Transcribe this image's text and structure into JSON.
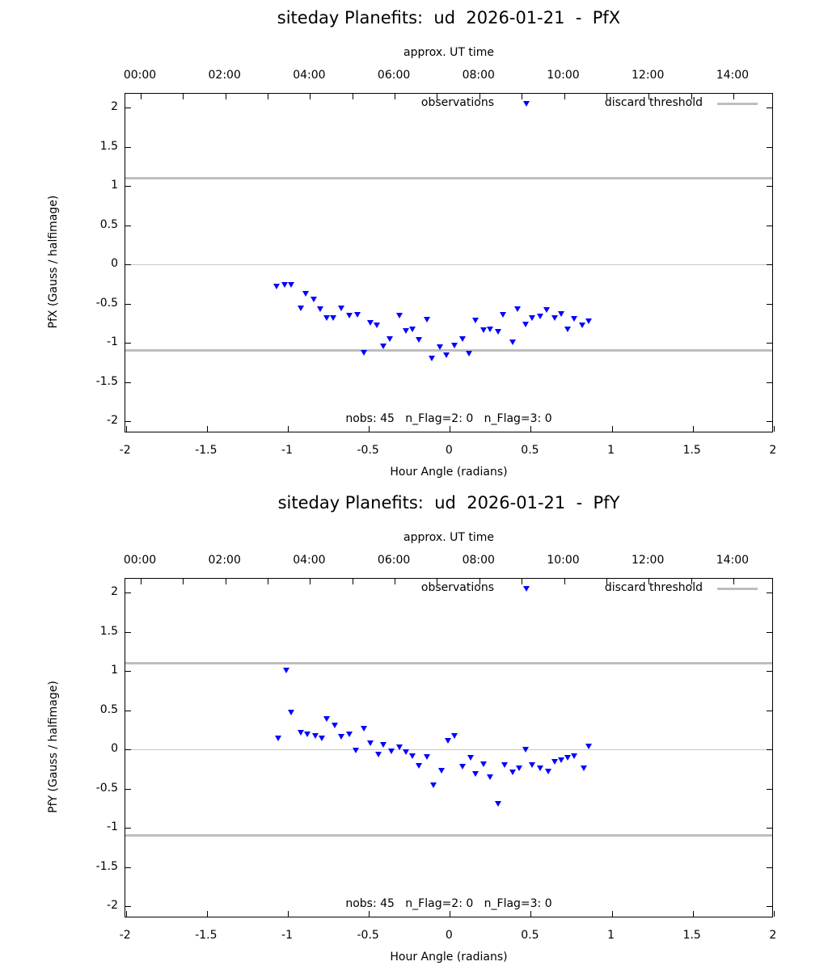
{
  "page": {
    "background": "#ffffff"
  },
  "colors": {
    "observations": "#0000ff",
    "discard_threshold": "#bebebe",
    "zero_line": "#c6c6c6",
    "axis": "#000000",
    "text": "#000000"
  },
  "chart_data": [
    {
      "type": "scatter",
      "title": "siteday Planefits:  ud  2026-01-21  -  PfX",
      "x2label": "approx. UT time",
      "xlabel": "Hour Angle (radians)",
      "ylabel": "PfX (Gauss / halfimage)",
      "xlim": [
        -2,
        2
      ],
      "ylim": [
        -2.2,
        2.2
      ],
      "grid": false,
      "legend_position": "top-right-inside",
      "xticks": [
        -2,
        -1.5,
        -1,
        -0.5,
        0,
        0.5,
        1,
        1.5,
        2
      ],
      "yticks": [
        2,
        1.5,
        1,
        0.5,
        0,
        -0.5,
        -1,
        -1.5,
        -2
      ],
      "x2tick_labels": [
        "00:00",
        "02:00",
        "04:00",
        "06:00",
        "08:00",
        "10:00",
        "12:00",
        "14:00"
      ],
      "x2tick_hour_step_labeled": 2,
      "threshold_lines": [
        1.1,
        -1.1
      ],
      "zero_line": 0,
      "legend": [
        {
          "label": "observations",
          "marker": "triangle-down",
          "color": "#0000ff"
        },
        {
          "label": "discard threshold",
          "style": "line",
          "color": "#bebebe"
        }
      ],
      "annotation": "nobs: 45   n_Flag=2: 0   n_Flag=3: 0",
      "nobs": 45,
      "series": [
        {
          "name": "observations",
          "points": [
            [
              -1.07,
              -0.29
            ],
            [
              -1.02,
              -0.27
            ],
            [
              -0.98,
              -0.27
            ],
            [
              -0.92,
              -0.57
            ],
            [
              -0.89,
              -0.38
            ],
            [
              -0.84,
              -0.45
            ],
            [
              -0.8,
              -0.58
            ],
            [
              -0.76,
              -0.69
            ],
            [
              -0.72,
              -0.69
            ],
            [
              -0.67,
              -0.57
            ],
            [
              -0.62,
              -0.66
            ],
            [
              -0.57,
              -0.65
            ],
            [
              -0.53,
              -1.13
            ],
            [
              -0.49,
              -0.75
            ],
            [
              -0.45,
              -0.78
            ],
            [
              -0.41,
              -1.05
            ],
            [
              -0.37,
              -0.96
            ],
            [
              -0.31,
              -0.66
            ],
            [
              -0.27,
              -0.86
            ],
            [
              -0.23,
              -0.84
            ],
            [
              -0.19,
              -0.97
            ],
            [
              -0.14,
              -0.71
            ],
            [
              -0.11,
              -1.21
            ],
            [
              -0.06,
              -1.06
            ],
            [
              -0.02,
              -1.16
            ],
            [
              0.03,
              -1.04
            ],
            [
              0.08,
              -0.96
            ],
            [
              0.12,
              -1.14
            ],
            [
              0.16,
              -0.72
            ],
            [
              0.21,
              -0.85
            ],
            [
              0.25,
              -0.83
            ],
            [
              0.3,
              -0.87
            ],
            [
              0.33,
              -0.65
            ],
            [
              0.39,
              -1.0
            ],
            [
              0.42,
              -0.58
            ],
            [
              0.47,
              -0.77
            ],
            [
              0.51,
              -0.69
            ],
            [
              0.56,
              -0.67
            ],
            [
              0.6,
              -0.59
            ],
            [
              0.65,
              -0.69
            ],
            [
              0.69,
              -0.64
            ],
            [
              0.73,
              -0.84
            ],
            [
              0.77,
              -0.7
            ],
            [
              0.82,
              -0.78
            ],
            [
              0.86,
              -0.73
            ]
          ]
        }
      ]
    },
    {
      "type": "scatter",
      "title": "siteday Planefits:  ud  2026-01-21  -  PfY",
      "x2label": "approx. UT time",
      "xlabel": "Hour Angle (radians)",
      "ylabel": "PfY (Gauss / halfimage)",
      "xlim": [
        -2,
        2
      ],
      "ylim": [
        -2.2,
        2.2
      ],
      "grid": false,
      "legend_position": "top-right-inside",
      "xticks": [
        -2,
        -1.5,
        -1,
        -0.5,
        0,
        0.5,
        1,
        1.5,
        2
      ],
      "yticks": [
        2,
        1.5,
        1,
        0.5,
        0,
        -0.5,
        -1,
        -1.5,
        -2
      ],
      "x2tick_labels": [
        "00:00",
        "02:00",
        "04:00",
        "06:00",
        "08:00",
        "10:00",
        "12:00",
        "14:00"
      ],
      "x2tick_hour_step_labeled": 2,
      "threshold_lines": [
        1.1,
        -1.1
      ],
      "zero_line": 0,
      "legend": [
        {
          "label": "observations",
          "marker": "triangle-down",
          "color": "#0000ff"
        },
        {
          "label": "discard threshold",
          "style": "line",
          "color": "#bebebe"
        }
      ],
      "annotation": "nobs: 45   n_Flag=2: 0   n_Flag=3: 0",
      "nobs": 45,
      "series": [
        {
          "name": "observations",
          "points": [
            [
              -1.06,
              0.13
            ],
            [
              -1.01,
              1.0
            ],
            [
              -0.98,
              0.46
            ],
            [
              -0.92,
              0.21
            ],
            [
              -0.88,
              0.19
            ],
            [
              -0.83,
              0.17
            ],
            [
              -0.79,
              0.13
            ],
            [
              -0.76,
              0.38
            ],
            [
              -0.71,
              0.3
            ],
            [
              -0.67,
              0.15
            ],
            [
              -0.62,
              0.19
            ],
            [
              -0.58,
              -0.02
            ],
            [
              -0.53,
              0.26
            ],
            [
              -0.49,
              0.07
            ],
            [
              -0.44,
              -0.07
            ],
            [
              -0.41,
              0.05
            ],
            [
              -0.36,
              -0.03
            ],
            [
              -0.31,
              0.02
            ],
            [
              -0.27,
              -0.04
            ],
            [
              -0.23,
              -0.09
            ],
            [
              -0.19,
              -0.22
            ],
            [
              -0.14,
              -0.1
            ],
            [
              -0.1,
              -0.46
            ],
            [
              -0.05,
              -0.28
            ],
            [
              -0.01,
              0.1
            ],
            [
              0.03,
              0.17
            ],
            [
              0.08,
              -0.23
            ],
            [
              0.13,
              -0.11
            ],
            [
              0.16,
              -0.32
            ],
            [
              0.21,
              -0.2
            ],
            [
              0.25,
              -0.36
            ],
            [
              0.3,
              -0.7
            ],
            [
              0.34,
              -0.21
            ],
            [
              0.39,
              -0.3
            ],
            [
              0.43,
              -0.25
            ],
            [
              0.47,
              -0.01
            ],
            [
              0.51,
              -0.21
            ],
            [
              0.56,
              -0.25
            ],
            [
              0.61,
              -0.29
            ],
            [
              0.65,
              -0.17
            ],
            [
              0.69,
              -0.14
            ],
            [
              0.73,
              -0.11
            ],
            [
              0.77,
              -0.09
            ],
            [
              0.83,
              -0.25
            ],
            [
              0.86,
              0.03
            ]
          ]
        }
      ]
    }
  ]
}
